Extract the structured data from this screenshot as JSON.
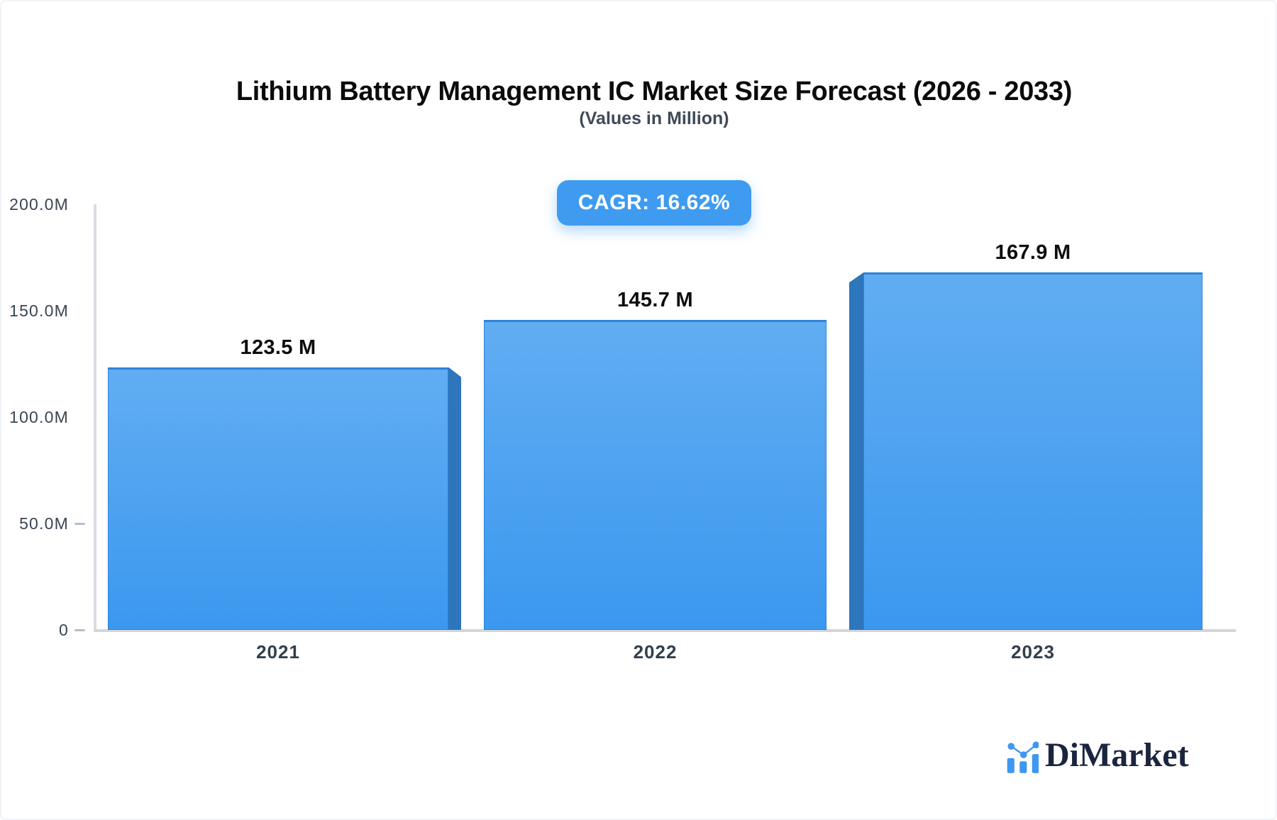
{
  "header": {
    "title": "Lithium Battery Management IC Market Size Forecast (2026 - 2033)",
    "subtitle": "(Values in Million)",
    "cagr_badge": "CAGR: 16.62%"
  },
  "chart_data": {
    "type": "bar",
    "title": "Lithium Battery Management IC Market Size Forecast (2026 - 2033)",
    "subtitle": "(Values in Million)",
    "cagr_percent": 16.62,
    "categories": [
      "2021",
      "2022",
      "2023"
    ],
    "values": [
      123.5,
      145.7,
      167.9
    ],
    "value_labels": [
      "123.5 M",
      "145.7 M",
      "167.9 M"
    ],
    "y_axis": {
      "unit": "M",
      "ylim": [
        0,
        200
      ],
      "tick_values": [
        200,
        150,
        100,
        50,
        0
      ],
      "tick_labels": [
        "200.0M",
        "150.0M",
        "100.0M",
        "50.0M",
        "0"
      ]
    },
    "grid": false,
    "legend": false,
    "bar_style": "3d-beveled"
  },
  "footer": {
    "brand": "DiMarket"
  },
  "colors": {
    "badge_bg": "#3E9BF0",
    "bar_top": "#61ADF2",
    "bar_bottom": "#3B98EF",
    "bar_side": "#2E76BC",
    "bar_border": "#2F82D8",
    "axis_line": "#D9DCE1",
    "baseline": "#D2D5DA",
    "logo_blue": "#3E97F0",
    "logo_text": "#1B2540"
  }
}
